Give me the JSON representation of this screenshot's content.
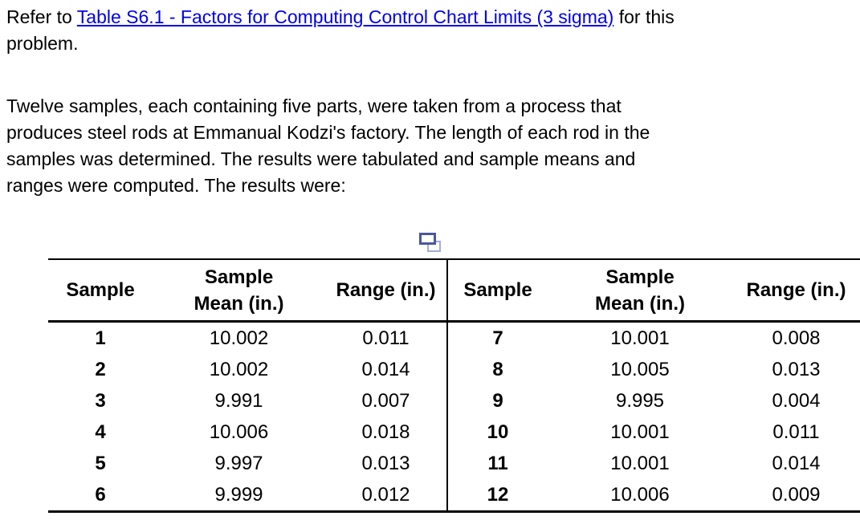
{
  "intro": {
    "prefix": "Refer to ",
    "link_text": "Table S6.1 - Factors for Computing Control Chart Limits (3 sigma)",
    "after_link": " for this",
    "line2": "problem."
  },
  "problem": {
    "lines": [
      "Twelve samples, each containing five parts, were taken from a process that",
      "produces steel rods at Emmanual Kodzi's factory. The length of each rod in the",
      "samples was determined. The results were tabulated and sample means and",
      "ranges were computed. The results were:"
    ]
  },
  "icons": {
    "popout": "popout-table-icon"
  },
  "table": {
    "headers": [
      "Sample",
      "Sample Mean (in.)",
      "Range (in.)",
      "Sample",
      "Sample Mean (in.)",
      "Range (in.)"
    ],
    "rows": [
      [
        "1",
        "10.002",
        "0.011",
        "7",
        "10.001",
        "0.008"
      ],
      [
        "2",
        "10.002",
        "0.014",
        "8",
        "10.005",
        "0.013"
      ],
      [
        "3",
        "9.991",
        "0.007",
        "9",
        "9.995",
        "0.004"
      ],
      [
        "4",
        "10.006",
        "0.018",
        "10",
        "10.001",
        "0.011"
      ],
      [
        "5",
        "9.997",
        "0.013",
        "11",
        "10.001",
        "0.014"
      ],
      [
        "6",
        "9.999",
        "0.012",
        "12",
        "10.006",
        "0.009"
      ]
    ]
  },
  "colors": {
    "link_blue": "#0000EE",
    "icon_front_border": "#4a57a0",
    "icon_back_border": "#a3adcf",
    "table_lines": "#000000"
  }
}
